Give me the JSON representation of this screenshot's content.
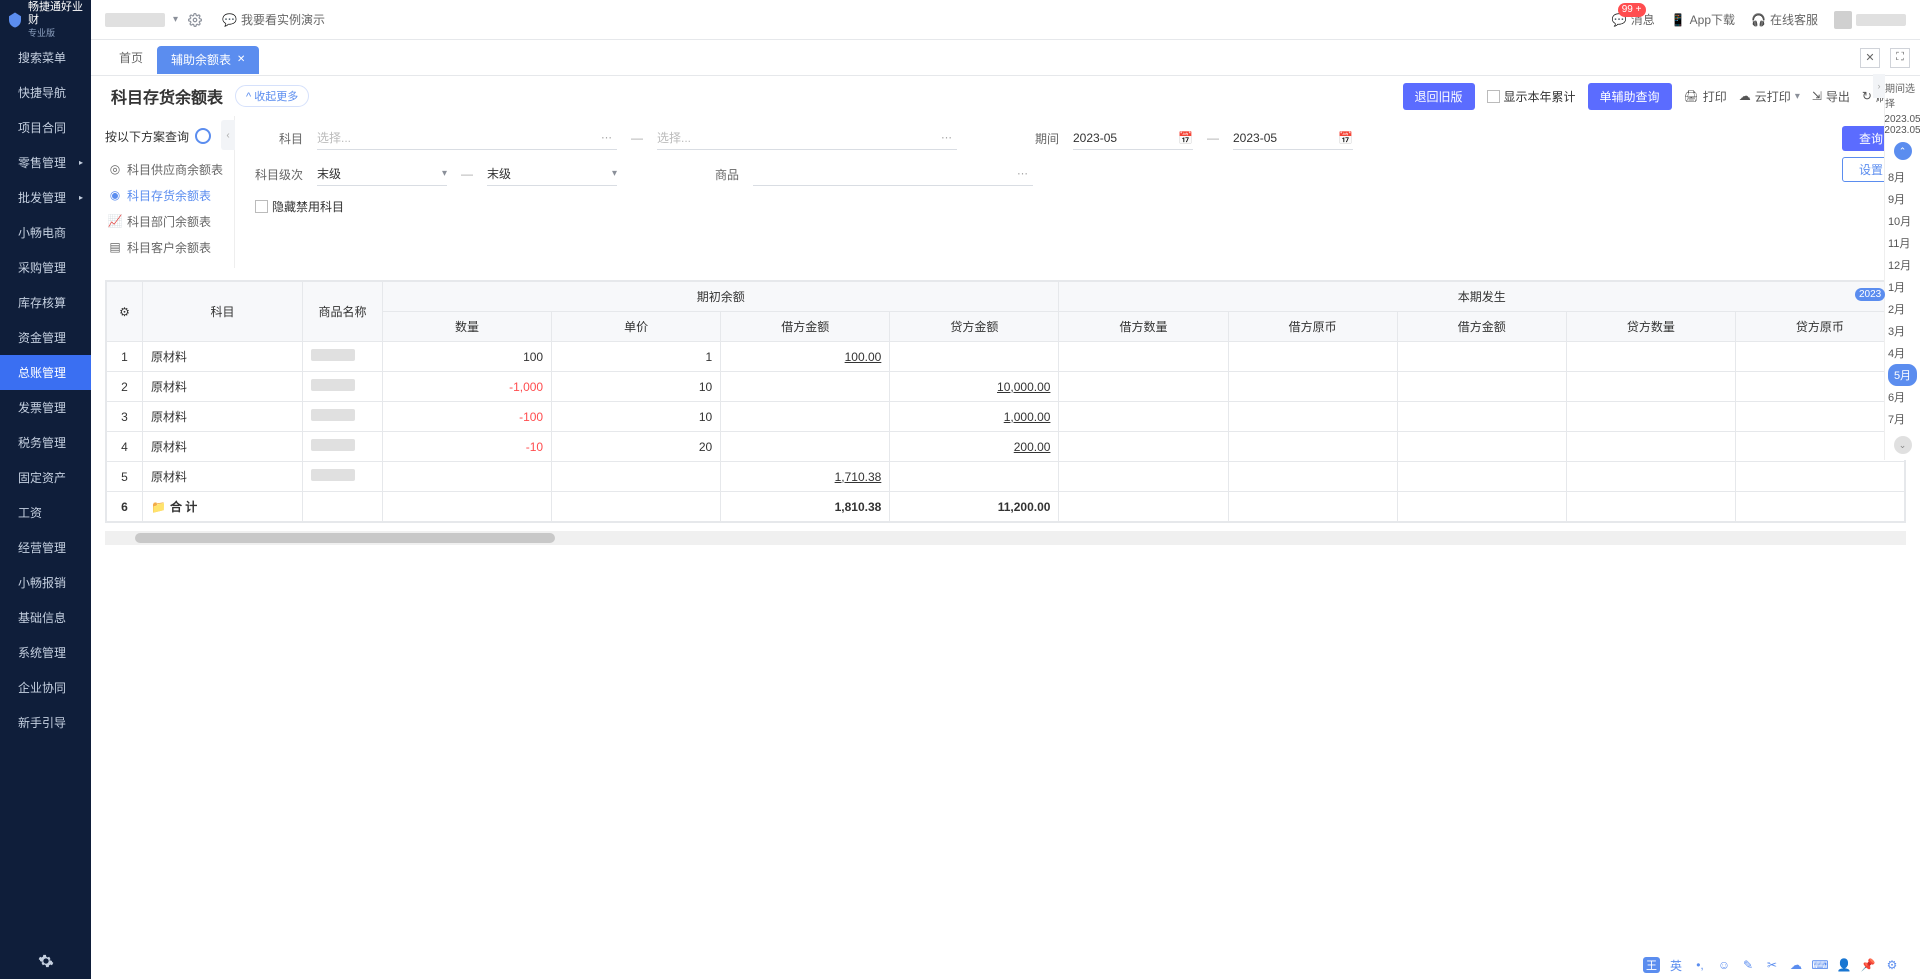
{
  "brand": {
    "title": "畅捷通好业财",
    "sub": "专业版"
  },
  "sidebar": {
    "items": [
      {
        "label": "搜索菜单"
      },
      {
        "label": "快捷导航"
      },
      {
        "label": "项目合同"
      },
      {
        "label": "零售管理",
        "caret": true
      },
      {
        "label": "批发管理",
        "caret": true
      },
      {
        "label": "小畅电商"
      },
      {
        "label": "采购管理"
      },
      {
        "label": "库存核算"
      },
      {
        "label": "资金管理"
      },
      {
        "label": "总账管理",
        "active": true
      },
      {
        "label": "发票管理"
      },
      {
        "label": "税务管理"
      },
      {
        "label": "固定资产"
      },
      {
        "label": "工资"
      },
      {
        "label": "经营管理"
      },
      {
        "label": "小畅报销"
      },
      {
        "label": "基础信息"
      },
      {
        "label": "系统管理"
      },
      {
        "label": "企业协同"
      },
      {
        "label": "新手引导"
      }
    ]
  },
  "topbar": {
    "demo": "我要看实例演示",
    "msg": "消息",
    "msg_badge": "99 +",
    "download": "App下载",
    "service": "在线客服"
  },
  "tabs": {
    "home": "首页",
    "active": "辅助余额表"
  },
  "page": {
    "title": "科目存货余额表",
    "collapse": "收起更多",
    "old_version": "退回旧版",
    "show_year": "显示本年累计",
    "single_aux": "单辅助查询",
    "print": "打印",
    "cloud_print": "云打印",
    "export": "导出",
    "refresh": "刷新"
  },
  "schemes": {
    "title": "按以下方案查询",
    "items": [
      {
        "label": "科目供应商余额表"
      },
      {
        "label": "科目存货余额表",
        "active": true
      },
      {
        "label": "科目部门余额表"
      },
      {
        "label": "科目客户余额表"
      }
    ]
  },
  "filters": {
    "subject": "科目",
    "select_ph": "选择...",
    "period": "期间",
    "date_from": "2023-05",
    "date_to": "2023-05",
    "level": "科目级次",
    "level_val": "末级",
    "product": "商品",
    "hide_disabled": "隐藏禁用科目",
    "query": "查询",
    "setting": "设置"
  },
  "table": {
    "group_begin": "期初余额",
    "group_current": "本期发生",
    "cols": {
      "subject": "科目",
      "product": "商品名称",
      "qty": "数量",
      "price": "单价",
      "debit_amt": "借方金额",
      "credit_amt": "贷方金额",
      "debit_qty": "借方数量",
      "debit_orig": "借方原币",
      "debit_amt2": "借方金额",
      "credit_qty": "贷方数量",
      "credit_orig": "贷方原币"
    },
    "rows": [
      {
        "idx": "1",
        "subject": "原材料",
        "qty": "100",
        "price": "1",
        "debit": "100.00",
        "credit": ""
      },
      {
        "idx": "2",
        "subject": "原材料",
        "qty": "-1,000",
        "price": "10",
        "debit": "",
        "credit": "10,000.00",
        "neg": true
      },
      {
        "idx": "3",
        "subject": "原材料",
        "qty": "-100",
        "price": "10",
        "debit": "",
        "credit": "1,000.00",
        "neg": true
      },
      {
        "idx": "4",
        "subject": "原材料",
        "qty": "-10",
        "price": "20",
        "debit": "",
        "credit": "200.00",
        "neg": true
      },
      {
        "idx": "5",
        "subject": "原材料",
        "qty": "",
        "price": "",
        "debit": "1,710.38",
        "credit": ""
      }
    ],
    "total": {
      "idx": "6",
      "label": "合 计",
      "debit": "1,810.38",
      "credit": "11,200.00"
    }
  },
  "period_panel": {
    "title": "期间选择",
    "from": "2023.05",
    "to": "2023.05",
    "months": [
      "8月",
      "9月",
      "10月",
      "11月",
      "12月",
      "1月",
      "2月",
      "3月",
      "4月",
      "5月",
      "6月",
      "7月"
    ],
    "selected": "5月",
    "year": "2023"
  },
  "colors": {
    "primary": "#5b6cff",
    "accent": "#5b8def",
    "neg": "#ff4d4f",
    "sidebar": "#0f1e3a"
  }
}
